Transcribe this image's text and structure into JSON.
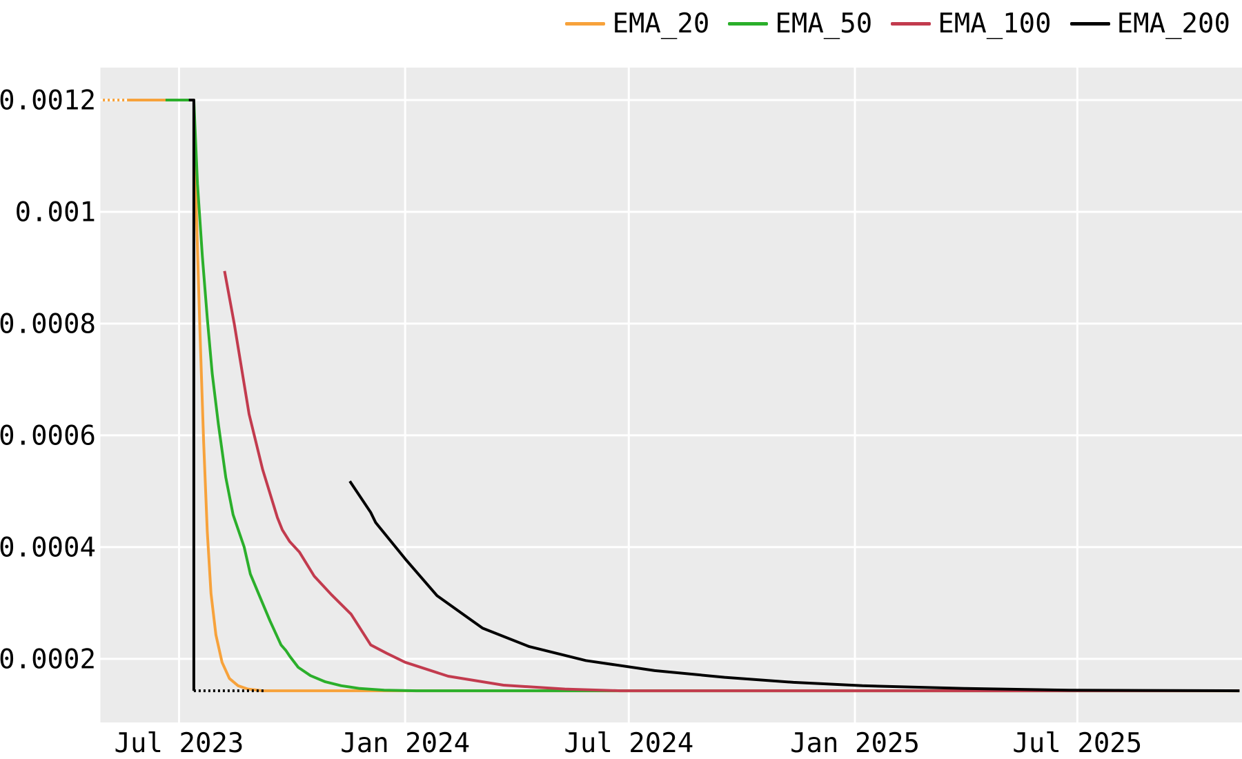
{
  "figure": {
    "background": "#FFFFFF",
    "plot_background": "#EBEBEB",
    "grid_color": "#FFFFFF",
    "text_color": "#000000"
  },
  "legend": {
    "position": "top-right",
    "entries": [
      "EMA_20",
      "EMA_50",
      "EMA_100",
      "EMA_200"
    ]
  },
  "chart_data": {
    "type": "line",
    "title": "",
    "xlabel": "",
    "ylabel": "",
    "grid": true,
    "x_range": [
      "2023-04-28",
      "2025-11-12"
    ],
    "y_range": [
      8.63e-05,
      0.001258
    ],
    "x_ticks": [
      {
        "date": "2023-07-01",
        "label": "Jul 2023"
      },
      {
        "date": "2024-01-01",
        "label": "Jan 2024"
      },
      {
        "date": "2024-07-01",
        "label": "Jul 2024"
      },
      {
        "date": "2025-01-01",
        "label": "Jan 2025"
      },
      {
        "date": "2025-07-01",
        "label": "Jul 2025"
      }
    ],
    "y_ticks": [
      {
        "value": 0.0002,
        "label": "0.0002"
      },
      {
        "value": 0.0004,
        "label": "0.0004"
      },
      {
        "value": 0.0006,
        "label": "0.0006"
      },
      {
        "value": 0.0008,
        "label": "0.0008"
      },
      {
        "value": 0.001,
        "label": "0.001"
      },
      {
        "value": 0.0012,
        "label": "0.0012"
      }
    ],
    "series": [
      {
        "name": "EMA_20",
        "color": "#F7A23B",
        "segments": [
          {
            "style": "dashed",
            "points": [
              [
                "2023-04-30",
                0.0012
              ],
              [
                "2023-05-21",
                0.0012
              ]
            ]
          },
          {
            "style": "solid",
            "points": [
              [
                "2023-05-21",
                0.0012
              ],
              [
                "2023-07-13",
                0.0012
              ],
              [
                "2023-07-15",
                0.001008
              ],
              [
                "2023-07-18",
                0.000786
              ],
              [
                "2023-07-21",
                0.000589
              ],
              [
                "2023-07-24",
                0.000428
              ],
              [
                "2023-07-27",
                0.000317
              ],
              [
                "2023-07-31",
                0.000243
              ],
              [
                "2023-08-05",
                0.000194
              ],
              [
                "2023-08-11",
                0.000165
              ],
              [
                "2023-08-18",
                0.000152
              ],
              [
                "2023-08-26",
                0.000146
              ],
              [
                "2023-09-07",
                0.000143
              ],
              [
                "2025-11-10",
                0.000143
              ]
            ]
          }
        ]
      },
      {
        "name": "EMA_50",
        "color": "#2BAF2B",
        "segments": [
          {
            "style": "solid",
            "points": [
              [
                "2023-06-20",
                0.0012
              ],
              [
                "2023-07-13",
                0.0012
              ],
              [
                "2023-07-16",
                0.00105
              ],
              [
                "2023-07-20",
                0.00092
              ],
              [
                "2023-07-24",
                0.00081
              ],
              [
                "2023-07-28",
                0.00071
              ],
              [
                "2023-08-02",
                0.00062
              ],
              [
                "2023-08-08",
                0.000525
              ],
              [
                "2023-08-14",
                0.000458
              ],
              [
                "2023-08-23",
                0.0004
              ],
              [
                "2023-08-28",
                0.000352
              ],
              [
                "2023-09-05",
                0.00031
              ],
              [
                "2023-09-13",
                0.000268
              ],
              [
                "2023-09-22",
                0.000225
              ],
              [
                "2023-09-26",
                0.000215
              ],
              [
                "2023-09-29",
                0.000205
              ],
              [
                "2023-10-06",
                0.000185
              ],
              [
                "2023-10-16",
                0.00017
              ],
              [
                "2023-10-28",
                0.000159
              ],
              [
                "2023-11-10",
                0.000152
              ],
              [
                "2023-11-25",
                0.000147
              ],
              [
                "2023-12-15",
                0.000144
              ],
              [
                "2024-01-10",
                0.000143
              ],
              [
                "2025-11-10",
                0.000143
              ]
            ]
          }
        ]
      },
      {
        "name": "EMA_100",
        "color": "#C23B4E",
        "segments": [
          {
            "style": "solid",
            "points": [
              [
                "2023-08-07",
                0.000894
              ],
              [
                "2023-08-15",
                0.000799
              ],
              [
                "2023-08-27",
                0.000638
              ],
              [
                "2023-09-07",
                0.000539
              ],
              [
                "2023-09-19",
                0.000453
              ],
              [
                "2023-09-23",
                0.000431
              ],
              [
                "2023-09-29",
                0.00041
              ],
              [
                "2023-10-07",
                0.000391
              ],
              [
                "2023-10-19",
                0.000348
              ],
              [
                "2023-11-02",
                0.000315
              ],
              [
                "2023-11-18",
                0.00028
              ],
              [
                "2023-12-04",
                0.000225
              ],
              [
                "2023-12-17",
                0.00021
              ],
              [
                "2024-01-01",
                0.000194
              ],
              [
                "2024-02-05",
                0.000169
              ],
              [
                "2024-03-21",
                0.000153
              ],
              [
                "2024-05-10",
                0.000146
              ],
              [
                "2024-06-24",
                0.000143
              ],
              [
                "2025-11-10",
                0.000143
              ]
            ]
          }
        ]
      },
      {
        "name": "EMA_200",
        "color": "#000000",
        "segments": [
          {
            "style": "solid",
            "points": [
              [
                "2023-07-09",
                0.0012
              ],
              [
                "2023-07-13",
                0.0012
              ],
              [
                "2023-07-13",
                0.000143
              ]
            ]
          },
          {
            "style": "dashed",
            "points": [
              [
                "2023-07-13",
                0.000143
              ],
              [
                "2023-09-10",
                0.000143
              ]
            ]
          },
          {
            "style": "solid",
            "points": [
              [
                "2023-11-17",
                0.000518
              ],
              [
                "2023-12-04",
                0.000462
              ],
              [
                "2023-12-08",
                0.000444
              ],
              [
                "2024-01-01",
                0.000379
              ],
              [
                "2024-01-27",
                0.000313
              ],
              [
                "2024-03-04",
                0.000255
              ],
              [
                "2024-04-11",
                0.000222
              ],
              [
                "2024-05-27",
                0.000197
              ],
              [
                "2024-07-22",
                0.000179
              ],
              [
                "2024-09-17",
                0.000167
              ],
              [
                "2024-11-12",
                0.000158
              ],
              [
                "2025-01-07",
                0.000152
              ],
              [
                "2025-04-01",
                0.000147
              ],
              [
                "2025-06-24",
                0.000144
              ],
              [
                "2025-11-10",
                0.000143
              ]
            ]
          }
        ]
      }
    ]
  }
}
